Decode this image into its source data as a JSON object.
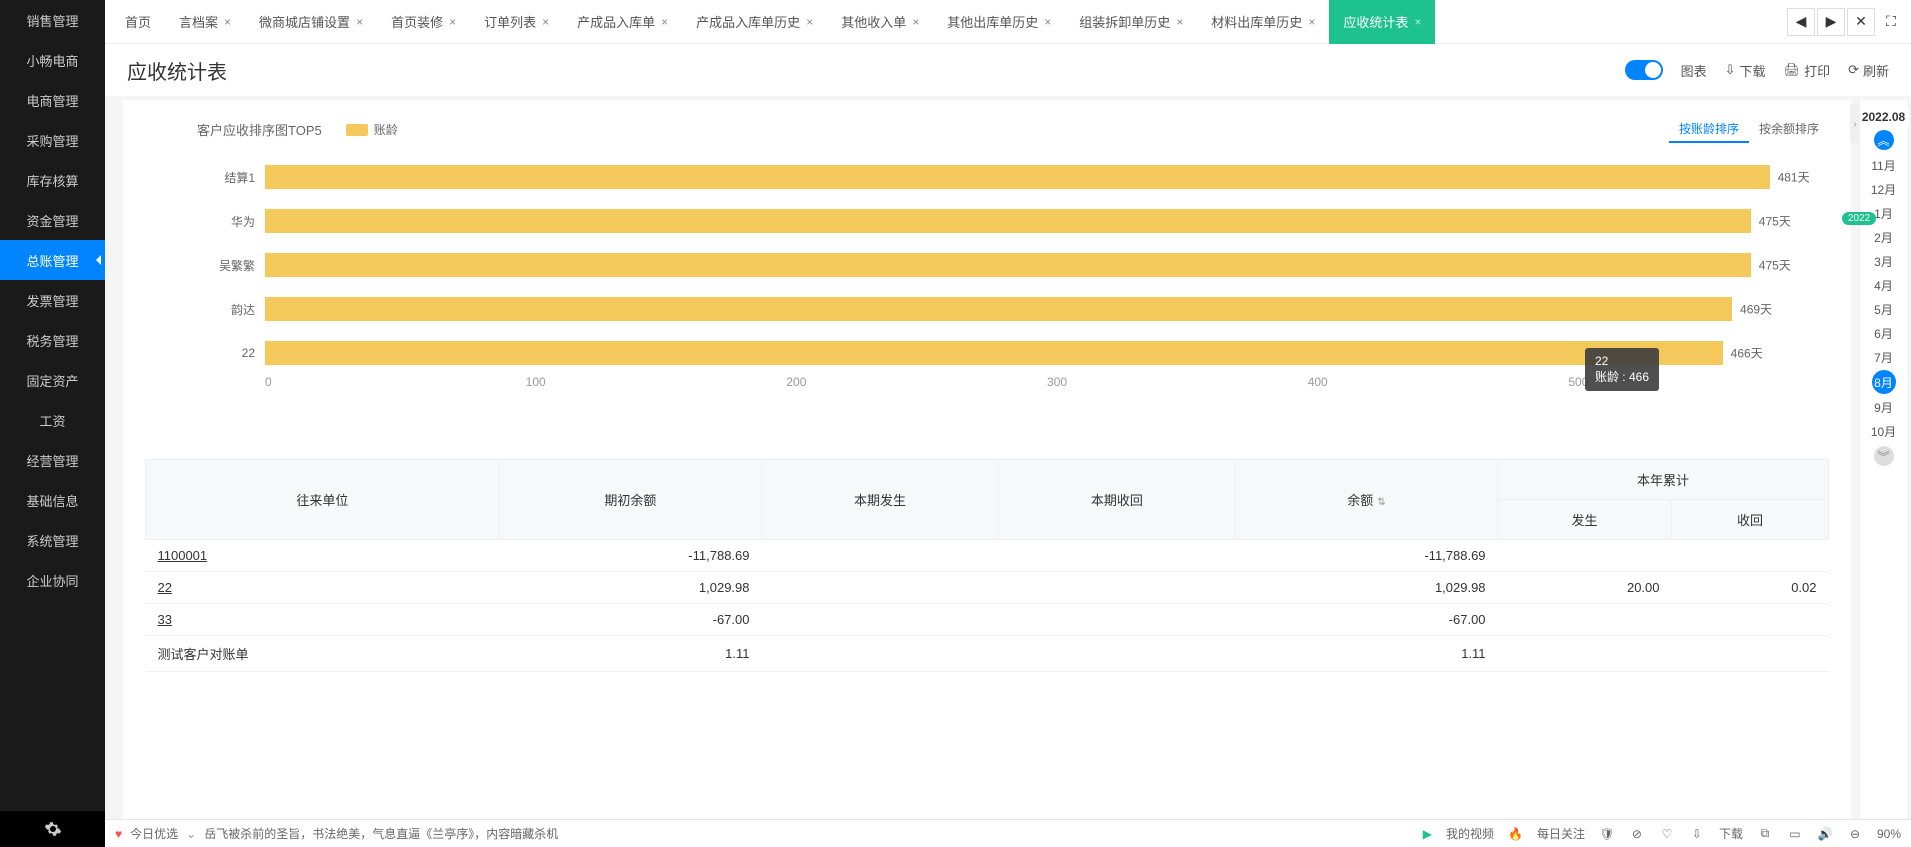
{
  "sidebar": {
    "items": [
      {
        "label": "销售管理"
      },
      {
        "label": "小畅电商"
      },
      {
        "label": "电商管理"
      },
      {
        "label": "采购管理"
      },
      {
        "label": "库存核算"
      },
      {
        "label": "资金管理"
      },
      {
        "label": "总账管理",
        "active": true
      },
      {
        "label": "发票管理"
      },
      {
        "label": "税务管理"
      },
      {
        "label": "固定资产"
      },
      {
        "label": "工资"
      },
      {
        "label": "经营管理"
      },
      {
        "label": "基础信息"
      },
      {
        "label": "系统管理"
      },
      {
        "label": "企业协同"
      }
    ]
  },
  "tabs": {
    "items": [
      {
        "label": "首页",
        "closable": false
      },
      {
        "label": "言档案",
        "closable": true
      },
      {
        "label": "微商城店铺设置",
        "closable": true
      },
      {
        "label": "首页装修",
        "closable": true
      },
      {
        "label": "订单列表",
        "closable": true
      },
      {
        "label": "产成品入库单",
        "closable": true
      },
      {
        "label": "产成品入库单历史",
        "closable": true
      },
      {
        "label": "其他收入单",
        "closable": true
      },
      {
        "label": "其他出库单历史",
        "closable": true
      },
      {
        "label": "组装拆卸单历史",
        "closable": true
      },
      {
        "label": "材料出库单历史",
        "closable": true
      },
      {
        "label": "应收统计表",
        "closable": true,
        "active": true
      }
    ]
  },
  "page": {
    "title": "应收统计表",
    "toggle_label": "图表",
    "download_label": "下载",
    "print_label": "打印",
    "refresh_label": "刷新"
  },
  "chart": {
    "title": "客户应收排序图TOP5",
    "legend_label": "账龄",
    "sort_by_age": "按账龄排序",
    "sort_by_amount": "按余额排序",
    "type": "horizontal-bar",
    "bar_color": "#f3c95b",
    "background_color": "#ffffff",
    "xlim": [
      0,
      500
    ],
    "xtick_step": 100,
    "xticks": [
      "0",
      "100",
      "200",
      "300",
      "400",
      "500"
    ],
    "value_suffix": "天",
    "bars": [
      {
        "label": "结算1",
        "value": 481,
        "display": "481天"
      },
      {
        "label": "华为",
        "value": 475,
        "display": "475天"
      },
      {
        "label": "吴繁繁",
        "value": 475,
        "display": "475天"
      },
      {
        "label": "韵达",
        "value": 469,
        "display": "469天"
      },
      {
        "label": "22",
        "value": 466,
        "display": "466天"
      }
    ],
    "tooltip": {
      "name": "22",
      "label": "账龄",
      "value": "466"
    }
  },
  "table": {
    "columns": {
      "c0": "往来单位",
      "c1": "期初余额",
      "c2": "本期发生",
      "c3": "本期收回",
      "c4": "余额",
      "c5_group": "本年累计",
      "c5a": "发生",
      "c5b": "收回"
    },
    "rows": [
      {
        "unit": "1100001",
        "link": true,
        "opening": "-11,788.69",
        "occur": "",
        "recover": "",
        "balance": "-11,788.69",
        "ytd_occur": "",
        "ytd_recover": ""
      },
      {
        "unit": "22",
        "link": true,
        "opening": "1,029.98",
        "occur": "",
        "recover": "",
        "balance": "1,029.98",
        "ytd_occur": "20.00",
        "ytd_recover": "0.02"
      },
      {
        "unit": "33",
        "link": true,
        "opening": "-67.00",
        "occur": "",
        "recover": "",
        "balance": "-67.00",
        "ytd_occur": "",
        "ytd_recover": ""
      },
      {
        "unit": "测试客户对账单",
        "link": false,
        "opening": "1.11",
        "occur": "",
        "recover": "",
        "balance": "1.11",
        "ytd_occur": "",
        "ytd_recover": ""
      }
    ]
  },
  "date_rail": {
    "current": "2022.08",
    "year_badge": "2022",
    "months": [
      {
        "label": "11月"
      },
      {
        "label": "12月"
      },
      {
        "label": "1月"
      },
      {
        "label": "2月"
      },
      {
        "label": "3月"
      },
      {
        "label": "4月"
      },
      {
        "label": "5月"
      },
      {
        "label": "6月"
      },
      {
        "label": "7月"
      },
      {
        "label": "8月",
        "active": true
      },
      {
        "label": "9月"
      },
      {
        "label": "10月"
      }
    ]
  },
  "statusbar": {
    "today_pick": "今日优选",
    "news": "岳飞被杀前的圣旨，书法绝美，气息直逼《兰亭序》，内容暗藏杀机",
    "my_video": "我的视频",
    "daily_focus": "每日关注",
    "zoom": "90%"
  }
}
